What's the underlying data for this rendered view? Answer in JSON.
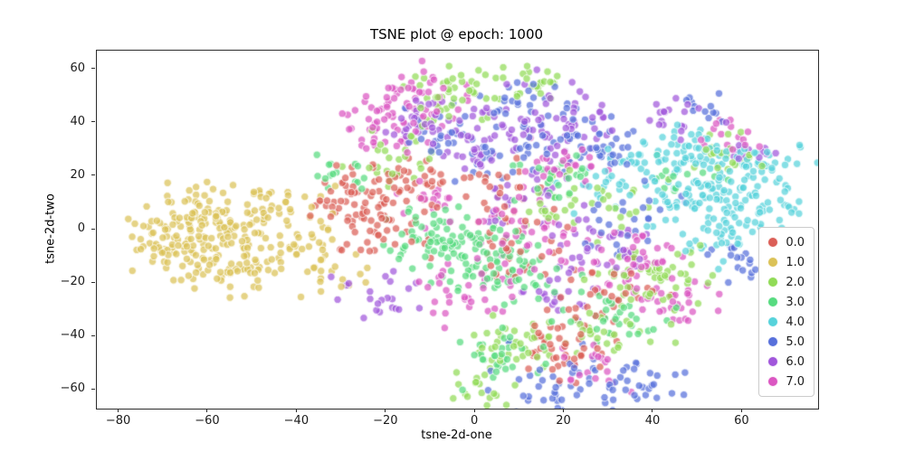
{
  "chart_data": {
    "type": "scatter",
    "title": "TSNE plot @ epoch: 1000",
    "xlabel": "tsne-2d-one",
    "ylabel": "tsne-2d-two",
    "xlim": [
      -85,
      77
    ],
    "ylim": [
      -67,
      67
    ],
    "x_ticks": [
      -80,
      -60,
      -40,
      -20,
      0,
      20,
      40,
      60
    ],
    "y_ticks": [
      -60,
      -40,
      -20,
      0,
      20,
      40,
      60
    ],
    "grid": false,
    "legend_location": "lower right",
    "marker": {
      "radius_px": 4.2,
      "alpha": 0.72,
      "edge_color": "#ffffff",
      "edge_alpha": 0.85
    },
    "seed": 42,
    "series": [
      {
        "name": "0.0",
        "color": "#db5f57",
        "clusters": [
          [
            -26,
            12,
            6,
            70
          ],
          [
            -14,
            18,
            4,
            25
          ],
          [
            -20,
            -2,
            5,
            25
          ],
          [
            5,
            15,
            6,
            25
          ],
          [
            20,
            -42,
            6,
            45
          ],
          [
            30,
            -25,
            5,
            30
          ],
          [
            8,
            -8,
            7,
            30
          ]
        ]
      },
      {
        "name": "1.0",
        "color": "#dbc257",
        "clusters": [
          [
            -63,
            2,
            7,
            110
          ],
          [
            -55,
            -12,
            6,
            70
          ],
          [
            -68,
            -8,
            5,
            40
          ],
          [
            -45,
            8,
            5,
            35
          ],
          [
            -38,
            -4,
            5,
            30
          ],
          [
            -33,
            -18,
            4,
            15
          ]
        ]
      },
      {
        "name": "2.0",
        "color": "#91db57",
        "clusters": [
          [
            -4,
            52,
            6,
            45
          ],
          [
            12,
            55,
            4,
            20
          ],
          [
            40,
            -20,
            7,
            55
          ],
          [
            28,
            -38,
            5,
            25
          ],
          [
            10,
            -42,
            6,
            35
          ],
          [
            55,
            28,
            4,
            20
          ],
          [
            25,
            8,
            7,
            35
          ],
          [
            -18,
            28,
            5,
            25
          ],
          [
            0,
            -60,
            5,
            20
          ]
        ]
      },
      {
        "name": "3.0",
        "color": "#57db80",
        "clusters": [
          [
            0,
            -8,
            7,
            80
          ],
          [
            -10,
            -2,
            5,
            35
          ],
          [
            10,
            -18,
            6,
            35
          ],
          [
            32,
            -33,
            5,
            30
          ],
          [
            5,
            -48,
            5,
            30
          ],
          [
            18,
            20,
            5,
            25
          ],
          [
            -30,
            22,
            4,
            15
          ],
          [
            45,
            18,
            4,
            12
          ]
        ]
      },
      {
        "name": "4.0",
        "color": "#57d3db",
        "clusters": [
          [
            52,
            12,
            7,
            100
          ],
          [
            63,
            24,
            5,
            40
          ],
          [
            42,
            26,
            5,
            35
          ],
          [
            57,
            -2,
            5,
            30
          ],
          [
            32,
            17,
            5,
            25
          ],
          [
            68,
            10,
            4,
            20
          ],
          [
            47,
            33,
            4,
            20
          ]
        ]
      },
      {
        "name": "5.0",
        "color": "#5770db",
        "clusters": [
          [
            25,
            32,
            6,
            45
          ],
          [
            12,
            45,
            5,
            30
          ],
          [
            20,
            -58,
            6,
            45
          ],
          [
            38,
            -57,
            5,
            25
          ],
          [
            -8,
            35,
            5,
            25
          ],
          [
            60,
            -12,
            4,
            18
          ],
          [
            33,
            3,
            6,
            25
          ],
          [
            5,
            28,
            5,
            20
          ],
          [
            52,
            45,
            3,
            12
          ]
        ]
      },
      {
        "name": "6.0",
        "color": "#a157db",
        "clusters": [
          [
            2,
            35,
            7,
            55
          ],
          [
            22,
            42,
            6,
            45
          ],
          [
            -12,
            40,
            5,
            30
          ],
          [
            12,
            12,
            6,
            30
          ],
          [
            45,
            42,
            4,
            18
          ],
          [
            -20,
            -25,
            5,
            22
          ],
          [
            30,
            -8,
            5,
            25
          ],
          [
            18,
            -25,
            5,
            22
          ],
          [
            60,
            30,
            3,
            12
          ]
        ]
      },
      {
        "name": "7.0",
        "color": "#db57c2",
        "clusters": [
          [
            -14,
            46,
            6,
            60
          ],
          [
            -22,
            38,
            4,
            25
          ],
          [
            10,
            -3,
            7,
            45
          ],
          [
            35,
            -10,
            6,
            45
          ],
          [
            45,
            -28,
            5,
            30
          ],
          [
            -3,
            -25,
            6,
            30
          ],
          [
            20,
            25,
            5,
            25
          ],
          [
            55,
            33,
            4,
            15
          ],
          [
            25,
            -52,
            5,
            20
          ],
          [
            -10,
            12,
            4,
            15
          ]
        ]
      }
    ]
  }
}
